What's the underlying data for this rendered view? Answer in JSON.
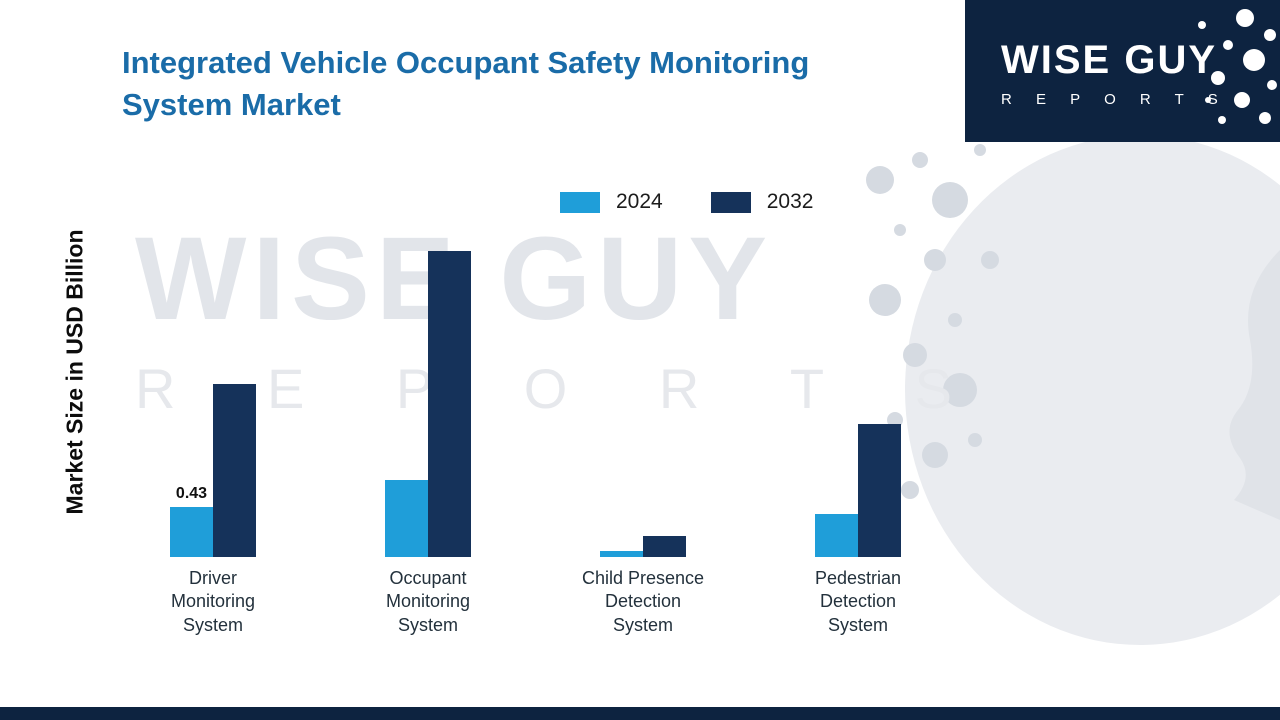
{
  "header": {
    "title": "Integrated Vehicle Occupant Safety Monitoring System Market"
  },
  "brand": {
    "name_line1": "WISE GUY",
    "name_line2": "R E P O R T S",
    "watermark_line1": "WISE GUY",
    "watermark_line2": "R E P O R T S"
  },
  "colors": {
    "title_blue": "#1a6ca8",
    "navy": "#0d2340",
    "series_2024": "#1f9ed9",
    "series_2032": "#15325a",
    "watermark_gray": "#e2e5ea"
  },
  "chart_data": {
    "type": "bar",
    "title": "Integrated Vehicle Occupant Safety Monitoring System Market",
    "xlabel": "",
    "ylabel": "Market Size in USD Billion",
    "unit": "USD Billion",
    "categories": [
      "Driver Monitoring System",
      "Occupant Monitoring System",
      "Child Presence Detection System",
      "Pedestrian Detection System"
    ],
    "series": [
      {
        "name": "2024",
        "color": "#1f9ed9",
        "values": [
          0.43,
          0.66,
          0.05,
          0.37
        ]
      },
      {
        "name": "2032",
        "color": "#15325a",
        "values": [
          1.48,
          2.62,
          0.18,
          1.14
        ]
      }
    ],
    "ylim": [
      0,
      2.8
    ],
    "grid": false,
    "legend_position": "top",
    "data_labels": [
      {
        "category_index": 0,
        "series_index": 0,
        "text": "0.43"
      }
    ]
  }
}
